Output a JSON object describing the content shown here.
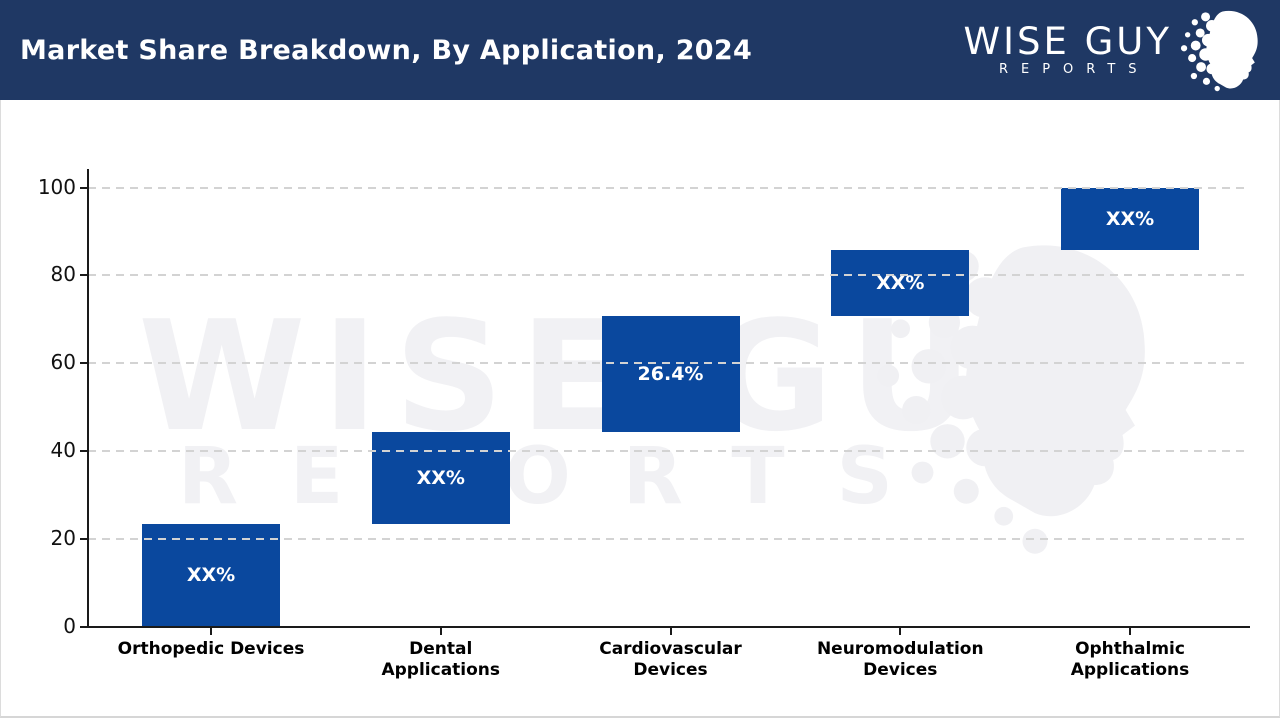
{
  "header": {
    "title": "Market Share Breakdown, By Application, 2024",
    "logo": {
      "line1": "WISE GUY",
      "line2": "REPORTS"
    }
  },
  "watermark": {
    "line1": "WISE GUY",
    "line2": "REPORTS"
  },
  "colors": {
    "header_bg": "#1f3864",
    "bar": "#0a489e",
    "bar_label": "#ffffff",
    "axis": "#1a1a1a",
    "grid": "#d3d3d3",
    "watermark": "#f1f1f4"
  },
  "chart_data": {
    "type": "bar",
    "subtype": "waterfall",
    "title": "Market Share Breakdown, By Application, 2024",
    "categories": [
      "Orthopedic Devices",
      "Dental Applications",
      "Cardiovascular Devices",
      "Neuromodulation Devices",
      "Ophthalmic Applications"
    ],
    "bars": [
      {
        "label_lines": [
          "Orthopedic Devices"
        ],
        "start": 0,
        "end": 23.4,
        "value": 23.4,
        "value_label": "XX%"
      },
      {
        "label_lines": [
          "Dental",
          "Applications"
        ],
        "start": 23.4,
        "end": 44.4,
        "value": 21.0,
        "value_label": "XX%"
      },
      {
        "label_lines": [
          "Cardiovascular",
          "Devices"
        ],
        "start": 44.4,
        "end": 70.8,
        "value": 26.4,
        "value_label": "26.4%"
      },
      {
        "label_lines": [
          "Neuromodulation",
          "Devices"
        ],
        "start": 70.8,
        "end": 85.8,
        "value": 15.0,
        "value_label": "XX%"
      },
      {
        "label_lines": [
          "Ophthalmic",
          "Applications"
        ],
        "start": 85.8,
        "end": 100,
        "value": 14.2,
        "value_label": "XX%"
      }
    ],
    "y_ticks": [
      0,
      20,
      40,
      60,
      80,
      100
    ],
    "ylim": [
      0,
      104
    ],
    "xlabel": "",
    "ylabel": "",
    "grid": "horizontal-dashed-over-bars",
    "legend": "none"
  }
}
